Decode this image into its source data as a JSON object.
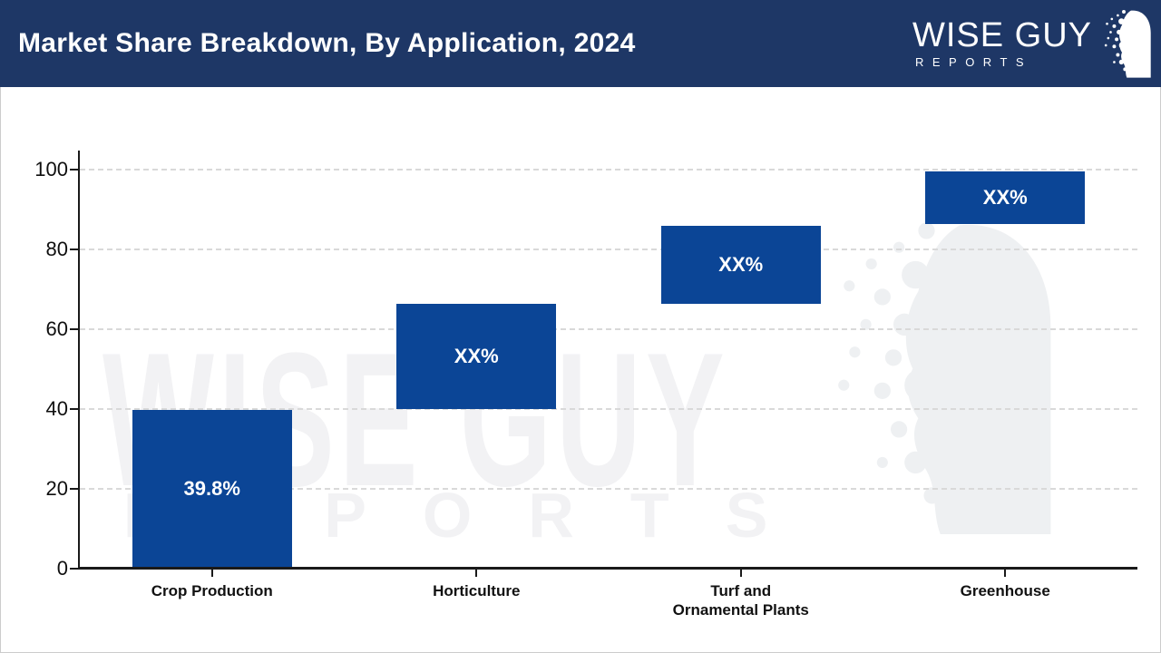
{
  "header": {
    "title": "Market Share Breakdown, By Application, 2024"
  },
  "logo": {
    "line1": "WISE GUY",
    "line2": "REPORTS",
    "head_icon": "dotted-face-profile"
  },
  "watermark": {
    "line1": "WISE GUY",
    "line2": "REPORTS",
    "head_icon": "dotted-face-profile"
  },
  "colors": {
    "header_bg": "#1e3766",
    "bar": "#0b4596",
    "bar_label_text": "#ffffff",
    "grid": "#d9d9d9",
    "axis": "#1a1a1a",
    "tick_text": "#0f0f0f",
    "watermark": "#f2f2f4",
    "frame_border": "#cccccc"
  },
  "chart_data": {
    "type": "bar",
    "variant": "floating-waterfall",
    "title": "Market Share Breakdown, By Application, 2024",
    "categories": [
      "Crop Production",
      "Horticulture",
      "Turf and\nOrnamental Plants",
      "Greenhouse"
    ],
    "segments": [
      {
        "category": "Crop Production",
        "start": 0,
        "end": 39.8,
        "label": "39.8%"
      },
      {
        "category": "Horticulture",
        "start": 40,
        "end": 66.3,
        "label": "XX%"
      },
      {
        "category": "Turf and Ornamental Plants",
        "start": 66.3,
        "end": 86.0,
        "label": "XX%"
      },
      {
        "category": "Greenhouse",
        "start": 86.3,
        "end": 99.6,
        "label": "XX%"
      }
    ],
    "ylim": [
      0,
      100
    ],
    "yticks": [
      0,
      20,
      40,
      60,
      80,
      100
    ],
    "xlabel": "",
    "ylabel": "",
    "grid": "dashed-horizontal",
    "legend": "none",
    "bar_color": "#0b4596"
  }
}
